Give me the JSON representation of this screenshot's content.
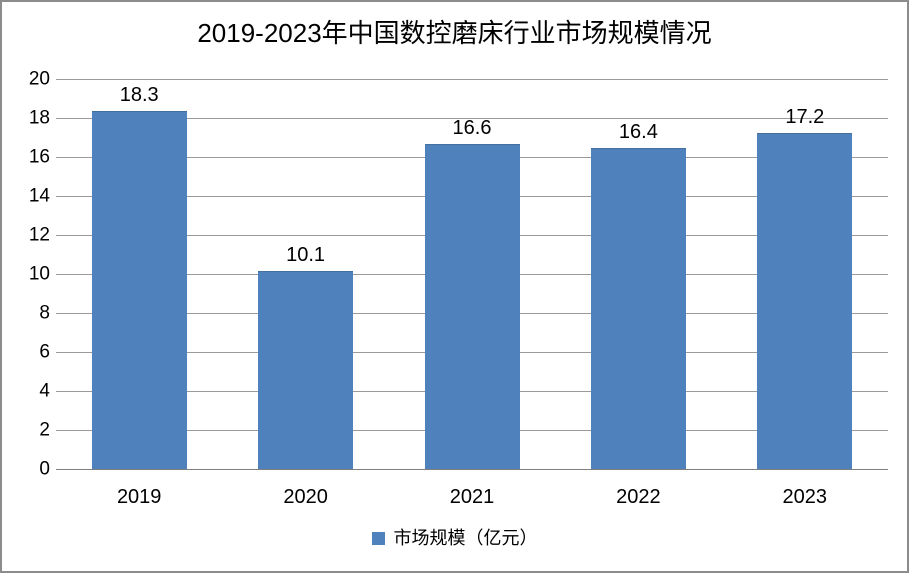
{
  "page": {
    "background": "#ffffff",
    "border_color": "#8c8c8c",
    "text_color": "#000000"
  },
  "chart_data": {
    "type": "bar",
    "title": "2019-2023年中国数控磨床行业市场规模情况",
    "categories": [
      "2019",
      "2020",
      "2021",
      "2022",
      "2023"
    ],
    "series": [
      {
        "name": "市场规模（亿元）",
        "values": [
          18.3,
          10.1,
          16.6,
          16.4,
          17.2
        ]
      }
    ],
    "value_labels": [
      "18.3",
      "10.1",
      "16.6",
      "16.4",
      "17.2"
    ],
    "xlabel": "",
    "ylabel": "",
    "ylim": [
      0,
      20
    ],
    "yticks": [
      0,
      2,
      4,
      6,
      8,
      10,
      12,
      14,
      16,
      18,
      20
    ],
    "grid": true,
    "legend_position": "bottom",
    "bar_color": "#4f81bd",
    "gridline_color": "#9b9b9b",
    "axis_line_color": "#7f7f7f"
  },
  "legend": {
    "label": "市场规模（亿元）",
    "marker_color": "#4f81bd"
  }
}
